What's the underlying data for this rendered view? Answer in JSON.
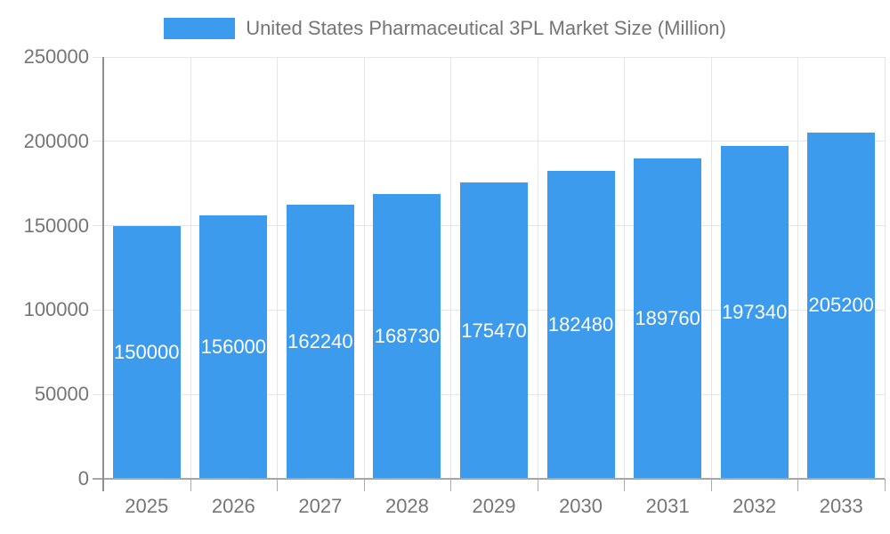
{
  "legend": {
    "label": "United States Pharmaceutical 3PL Market Size (Million)"
  },
  "colors": {
    "bar": "#3C9BED",
    "grid": "#e6e6e6",
    "axis_line": "#8f8f8f",
    "tick": "#ababab",
    "axis_text": "#757575",
    "value_label_text": "#ffffff",
    "background": "#ffffff"
  },
  "chart_data": {
    "type": "bar",
    "title": "United States Pharmaceutical 3PL Market Size (Million)",
    "categories": [
      "2025",
      "2026",
      "2027",
      "2028",
      "2029",
      "2030",
      "2031",
      "2032",
      "2033"
    ],
    "values": [
      150000,
      156000,
      162240,
      168730,
      175470,
      182480,
      189760,
      197340,
      205200
    ],
    "value_labels": [
      "150000",
      "156000",
      "162240",
      "168730",
      "175470",
      "182480",
      "189760",
      "197340",
      "205200"
    ],
    "yticks": [
      0,
      50000,
      100000,
      150000,
      200000,
      250000
    ],
    "ytick_labels": [
      "0",
      "50000",
      "100000",
      "150000",
      "200000",
      "250000"
    ],
    "ylim": [
      0,
      250000
    ],
    "xlabel": "",
    "ylabel": "",
    "grid": true,
    "legend_position": "top-center",
    "bar_label_position": "inside-center",
    "series": [
      {
        "name": "United States Pharmaceutical 3PL Market Size (Million)",
        "values": [
          150000,
          156000,
          162240,
          168730,
          175470,
          182480,
          189760,
          197340,
          205200
        ]
      }
    ]
  }
}
